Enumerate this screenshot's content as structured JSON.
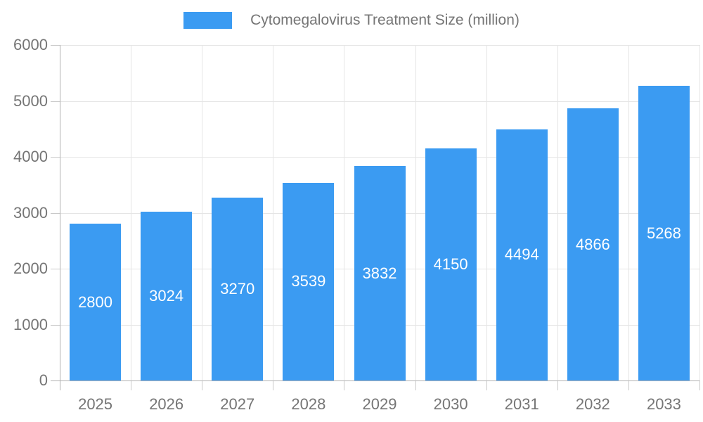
{
  "legend": {
    "label": "Cytomegalovirus Treatment Size (million)"
  },
  "chart_data": {
    "type": "bar",
    "title": "Cytomegalovirus Treatment Size (million)",
    "series_name": "Cytomegalovirus Treatment Size (million)",
    "categories": [
      "2025",
      "2026",
      "2027",
      "2028",
      "2029",
      "2030",
      "2031",
      "2032",
      "2033"
    ],
    "values": [
      2800,
      3024,
      3270,
      3539,
      3832,
      4150,
      4494,
      4866,
      5268
    ],
    "xlabel": "",
    "ylabel": "",
    "ylim": [
      0,
      6000
    ],
    "yticks": [
      0,
      1000,
      2000,
      3000,
      4000,
      5000,
      6000
    ],
    "grid": true,
    "legend_position": "top-center",
    "value_labels": "inside-center"
  },
  "colors": {
    "bar": "#3B9BF2",
    "bar_label": "#FFFFFF",
    "text": "#757575",
    "axis_line": "#B0B0B0",
    "tick_line": "#C9C9C9",
    "gridline": "#E5E5E5",
    "background": "#FFFFFF"
  }
}
